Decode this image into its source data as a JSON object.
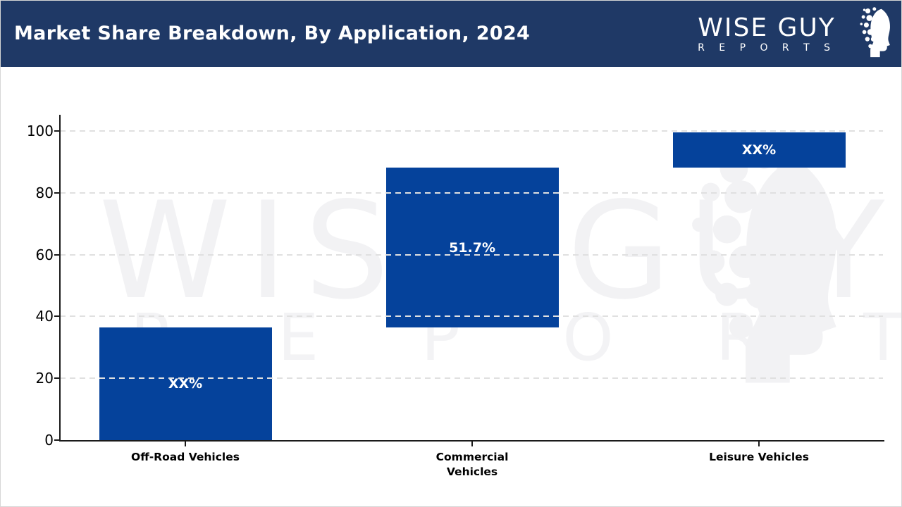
{
  "page": {
    "background": "#FFFFFF",
    "border_color": "#D7D7D7"
  },
  "header": {
    "title": "Market Share Breakdown, By Application, 2024",
    "bg_color": "#1F3966",
    "text_color": "#FFFFFF",
    "logo": {
      "line1": "WISE GUY",
      "line2": "R E P O R T S"
    }
  },
  "watermark": {
    "line1": "WISE GUY",
    "line2": "R E P O R T S"
  },
  "chart_data": {
    "type": "bar",
    "subtype": "waterfall-floating-segments",
    "title": "Market Share Breakdown, By Application, 2024",
    "categories": [
      "Off-Road Vehicles",
      "Commercial Vehicles",
      "Leisure Vehicles"
    ],
    "category_display": [
      "Off-Road Vehicles",
      "Commercial\nVehicles",
      "Leisure Vehicles"
    ],
    "series": [
      {
        "name": "Market share (%)",
        "segments": [
          {
            "category": "Off-Road Vehicles",
            "start": 0,
            "end": 36.4,
            "value_label": "XX%"
          },
          {
            "category": "Commercial Vehicles",
            "start": 36.4,
            "end": 88.1,
            "value_label": "51.7%"
          },
          {
            "category": "Leisure Vehicles",
            "start": 88.1,
            "end": 99.6,
            "value_label": "XX%"
          }
        ]
      }
    ],
    "yticks": [
      0,
      20,
      40,
      60,
      80,
      100
    ],
    "ylim": [
      0,
      104.7
    ],
    "xlabel": "",
    "ylabel": "",
    "grid": "horizontal-dashed-over-bars",
    "legend": "none",
    "bar_color": "#05429B",
    "bar_label_color": "#FFFFFF",
    "grid_color": "#E0E0E0",
    "axis_color": "#1A1A1A",
    "tick_label_color": "#000000"
  }
}
